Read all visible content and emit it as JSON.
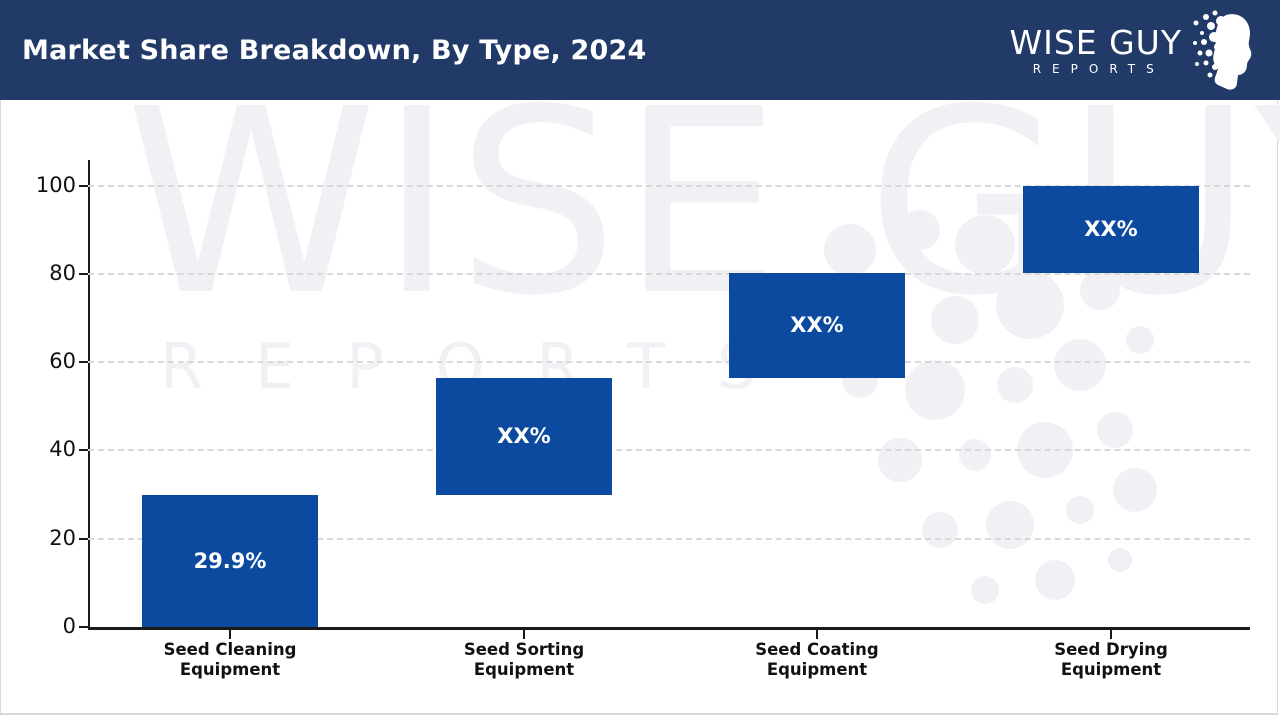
{
  "header": {
    "title": "Market Share Breakdown, By Type, 2024",
    "brand": {
      "line1": "WISE GUY",
      "line2": "REPORTS"
    }
  },
  "watermark": {
    "line1": "WISE GUY",
    "line2": "REPORTS"
  },
  "colors": {
    "header_bg": "#213a68",
    "bar_fill": "#0b4a9f",
    "bar_label": "#ffffff",
    "axis": "#1a1a1a",
    "gridline": "#d9d9d9",
    "watermark": "#f0f1f4",
    "title_text": "#ffffff"
  },
  "chart_data": {
    "type": "bar",
    "subtype": "waterfall",
    "title": "Market Share Breakdown, By Type, 2024",
    "xlabel": "",
    "ylabel": "",
    "ylim": [
      0,
      105
    ],
    "yticks": [
      0,
      20,
      40,
      60,
      80,
      100
    ],
    "grid": "dashed-horizontal",
    "legend": "none",
    "categories": [
      "Seed Cleaning Equipment",
      "Seed Sorting Equipment",
      "Seed Coating Equipment",
      "Seed Drying Equipment"
    ],
    "category_lines": [
      [
        "Seed Cleaning",
        "Equipment"
      ],
      [
        "Seed Sorting",
        "Equipment"
      ],
      [
        "Seed Coating",
        "Equipment"
      ],
      [
        "Seed Drying",
        "Equipment"
      ]
    ],
    "segments": [
      {
        "category": "Seed Cleaning Equipment",
        "start": 0,
        "end": 29.9,
        "label": "29.9%"
      },
      {
        "category": "Seed Sorting Equipment",
        "start": 29.9,
        "end": 56.4,
        "label": "XX%"
      },
      {
        "category": "Seed Coating Equipment",
        "start": 56.4,
        "end": 80.2,
        "label": "XX%"
      },
      {
        "category": "Seed Drying Equipment",
        "start": 80.2,
        "end": 100,
        "label": "XX%"
      }
    ]
  }
}
